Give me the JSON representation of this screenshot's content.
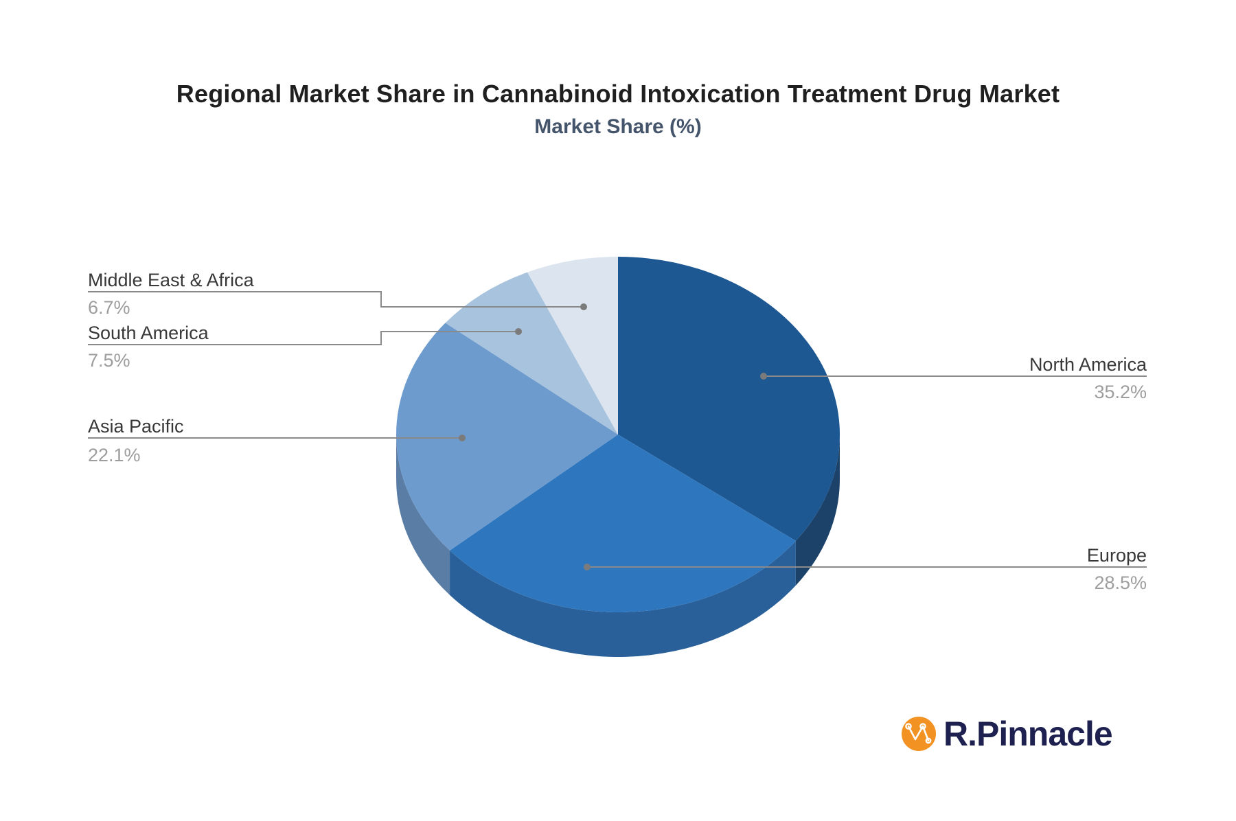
{
  "header": {
    "title": "Regional Market Share in Cannabinoid Intoxication Treatment Drug Market",
    "subtitle": "Market Share (%)"
  },
  "chart_data": {
    "type": "pie",
    "style": "3d",
    "title": "Regional Market Share in Cannabinoid Intoxication Treatment Drug Market",
    "subtitle": "Market Share (%)",
    "unit": "%",
    "start_angle_deg": 0,
    "direction": "clockwise",
    "legend_position": "callout-labels",
    "slices": [
      {
        "label": "North America",
        "value": 35.2,
        "display": "35.2%",
        "color": "#1d5893",
        "side_color": "#1c4269"
      },
      {
        "label": "Europe",
        "value": 28.5,
        "display": "28.5%",
        "color": "#2e77bf",
        "side_color": "#2a6099"
      },
      {
        "label": "Asia Pacific",
        "value": 22.1,
        "display": "22.1%",
        "color": "#6d9bce",
        "side_color": "#5a7da5"
      },
      {
        "label": "South America",
        "value": 7.5,
        "display": "7.5%",
        "color": "#a8c3dd"
      },
      {
        "label": "Middle East & Africa",
        "value": 6.7,
        "display": "6.7%",
        "color": "#dbe4ef"
      }
    ],
    "callout_color": "#8a8a8a",
    "dot_color": "#7b7b7b"
  },
  "branding": {
    "name": "R.Pinnacle",
    "icon": "network-nodes-icon",
    "icon_color": "#f29222",
    "text_color": "#1e2150"
  }
}
